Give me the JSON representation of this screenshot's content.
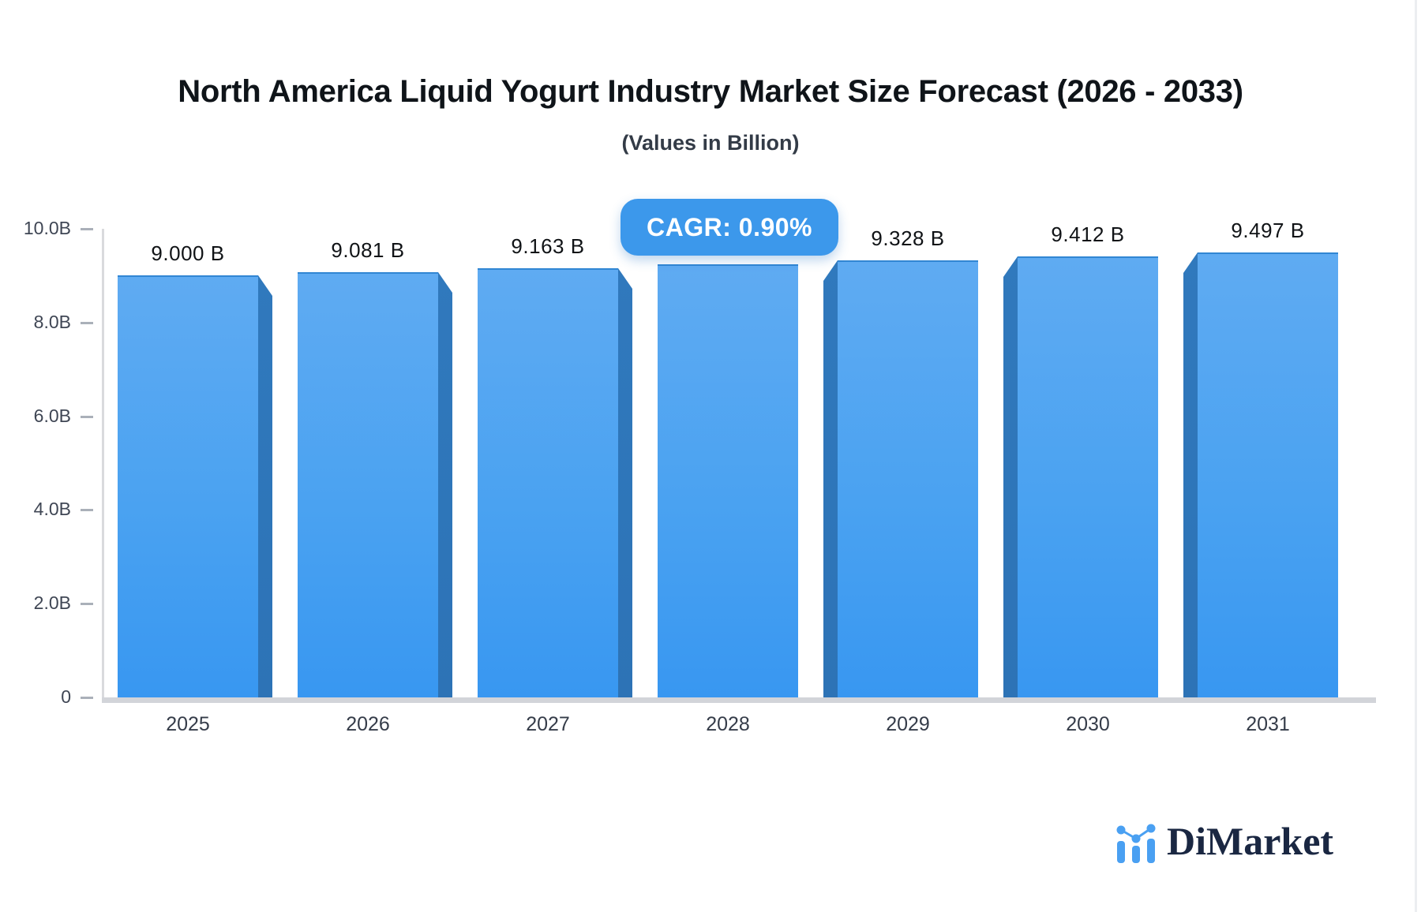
{
  "header": {
    "title": "North America Liquid Yogurt Industry Market Size Forecast (2026 - 2033)",
    "subtitle": "(Values in Billion)"
  },
  "annotation": {
    "cagr_label": "CAGR: 0.90%",
    "badge_color": "#3c98eb",
    "text_color": "#ffffff"
  },
  "logo": {
    "text": "DiMarket",
    "icon": "bar-chart-dots-icon",
    "icon_color": "#4aa0f2",
    "text_color": "#1a2742"
  },
  "colors": {
    "bar_top": "#5fabf2",
    "bar_bottom": "#3897f1",
    "bar_side": "#2e76ba",
    "axis": "#d9dadd",
    "baseline": "#d2d4d9"
  },
  "chart_data": {
    "type": "bar",
    "title": "North America Liquid Yogurt Industry Market Size Forecast (2026 - 2033)",
    "subtitle": "(Values in Billion)",
    "unit": "Billion",
    "categories": [
      "2025",
      "2026",
      "2027",
      "2028",
      "2029",
      "2030",
      "2031"
    ],
    "values": [
      9.0,
      9.081,
      9.163,
      9.245,
      9.328,
      9.412,
      9.497
    ],
    "value_labels": [
      "9.000 B",
      "9.081 B",
      "9.163 B",
      "",
      "9.328 B",
      "9.412 B",
      "9.497 B"
    ],
    "note": "2028 value label is covered by the CAGR badge; its bar height is estimated from pixels",
    "annotation": "CAGR: 0.90%",
    "xlabel": "",
    "ylabel": "",
    "ylim": [
      0,
      10
    ],
    "y_ticks": [
      {
        "label": "10.0B",
        "value": 10
      },
      {
        "label": "8.0B",
        "value": 8
      },
      {
        "label": "6.0B",
        "value": 6
      },
      {
        "label": "4.0B",
        "value": 4
      },
      {
        "label": "2.0B",
        "value": 2
      },
      {
        "label": "0",
        "value": 0
      }
    ],
    "grid": "off",
    "legend": "none",
    "bar_3d_perspective": "sides face toward center bar (2028)"
  }
}
